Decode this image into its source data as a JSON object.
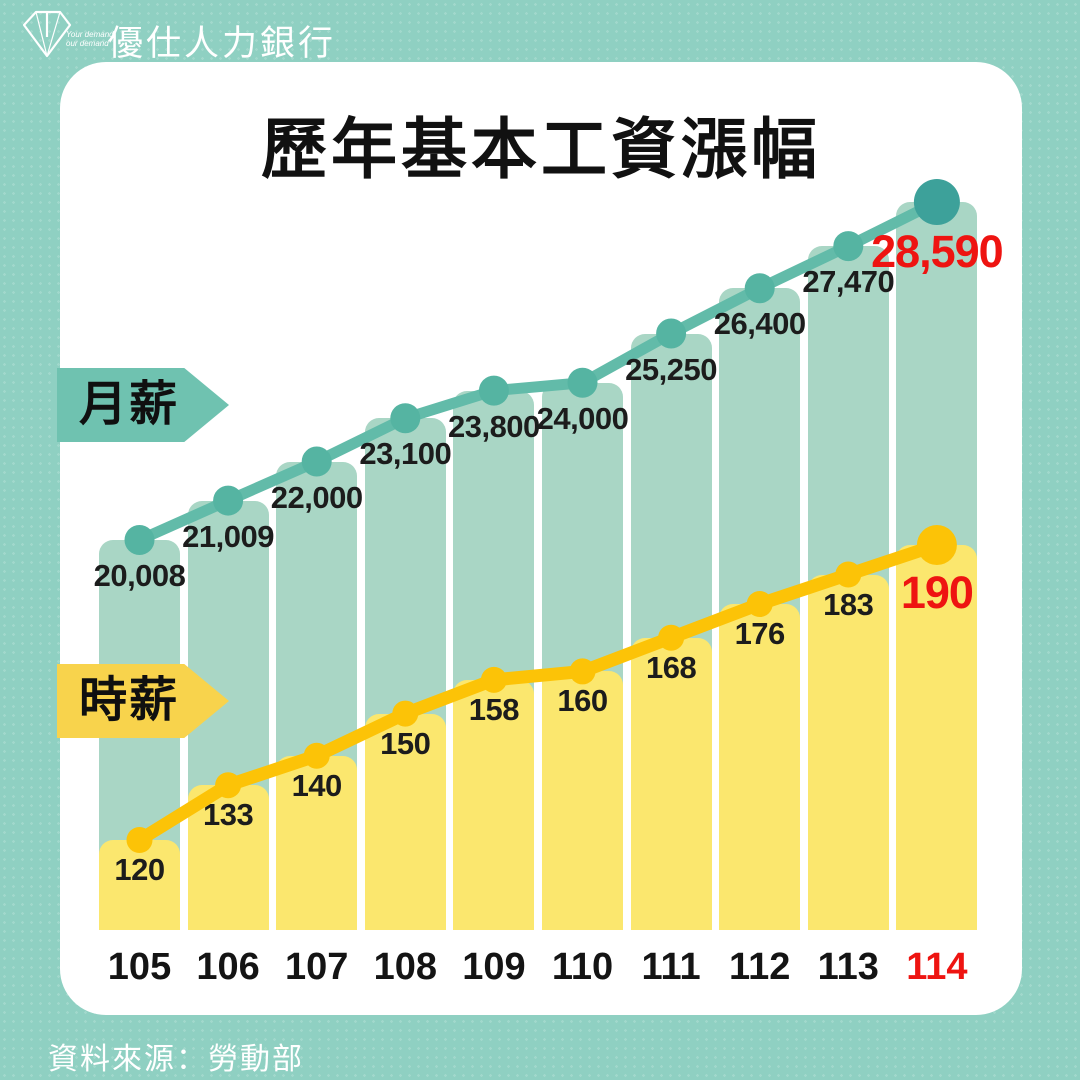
{
  "header": {
    "brand": "優仕人力銀行",
    "logo": "gem-logo",
    "tagline1": "Your demand",
    "tagline2": "our demand"
  },
  "title": "歷年基本工資漲幅",
  "legend": {
    "monthly": "月薪",
    "hourly": "時薪"
  },
  "source": "資料來源：勞動部",
  "colors": {
    "background": "#8fd0c2",
    "card": "#ffffff",
    "monthly_bar": "#a9d6c5",
    "monthly_line": "#62bba9",
    "monthly_dot": "#55b4a2",
    "monthly_dot_last": "#3da19a",
    "hourly_bar": "#fbe76e",
    "hourly_line": "#fcc307",
    "badge_monthly": "#6fc2b0",
    "badge_hourly": "#f8d34c",
    "highlight_red": "#ee1411",
    "text_black": "#1c1c1c"
  },
  "chart_data": {
    "type": "bar",
    "overlay": "line",
    "title": "歷年基本工資漲幅",
    "categories": [
      "105",
      "106",
      "107",
      "108",
      "109",
      "110",
      "111",
      "112",
      "113",
      "114"
    ],
    "highlight_index": 9,
    "legend_position": "left-badges",
    "grid": false,
    "series": [
      {
        "name": "月薪",
        "values": [
          20008,
          21009,
          22000,
          23100,
          23800,
          24000,
          25250,
          26400,
          27470,
          28590
        ]
      },
      {
        "name": "時薪",
        "values": [
          120,
          133,
          140,
          150,
          158,
          160,
          168,
          176,
          183,
          190
        ]
      }
    ]
  }
}
